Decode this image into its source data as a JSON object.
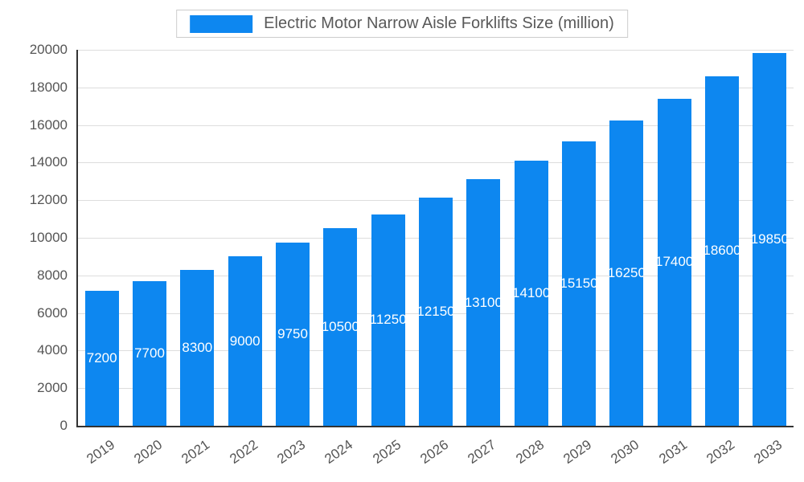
{
  "chart_data": {
    "type": "bar",
    "title": "Electric Motor Narrow Aisle Forklifts Size (million)",
    "categories": [
      "2019",
      "2020",
      "2021",
      "2022",
      "2023",
      "2024",
      "2025",
      "2026",
      "2027",
      "2028",
      "2029",
      "2030",
      "2031",
      "2032",
      "2033"
    ],
    "values": [
      7200,
      7700,
      8300,
      9000,
      9750,
      10500,
      11250,
      12150,
      13100,
      14100,
      15150,
      16250,
      17400,
      18600,
      19850
    ],
    "xlabel": "",
    "ylabel": "",
    "ylim": [
      0,
      20000
    ],
    "yticks": [
      0,
      2000,
      4000,
      6000,
      8000,
      10000,
      12000,
      14000,
      16000,
      18000,
      20000
    ],
    "grid": true,
    "legend_position": "top-center",
    "colors": {
      "bar": "#0d87f0",
      "title_text": "#595959",
      "tick_text": "#555555",
      "axis_line": "#333333",
      "grid_line": "#dddddd",
      "bar_value_text": "#ffffff",
      "legend_border": "#cccccc",
      "background": "#ffffff"
    }
  }
}
